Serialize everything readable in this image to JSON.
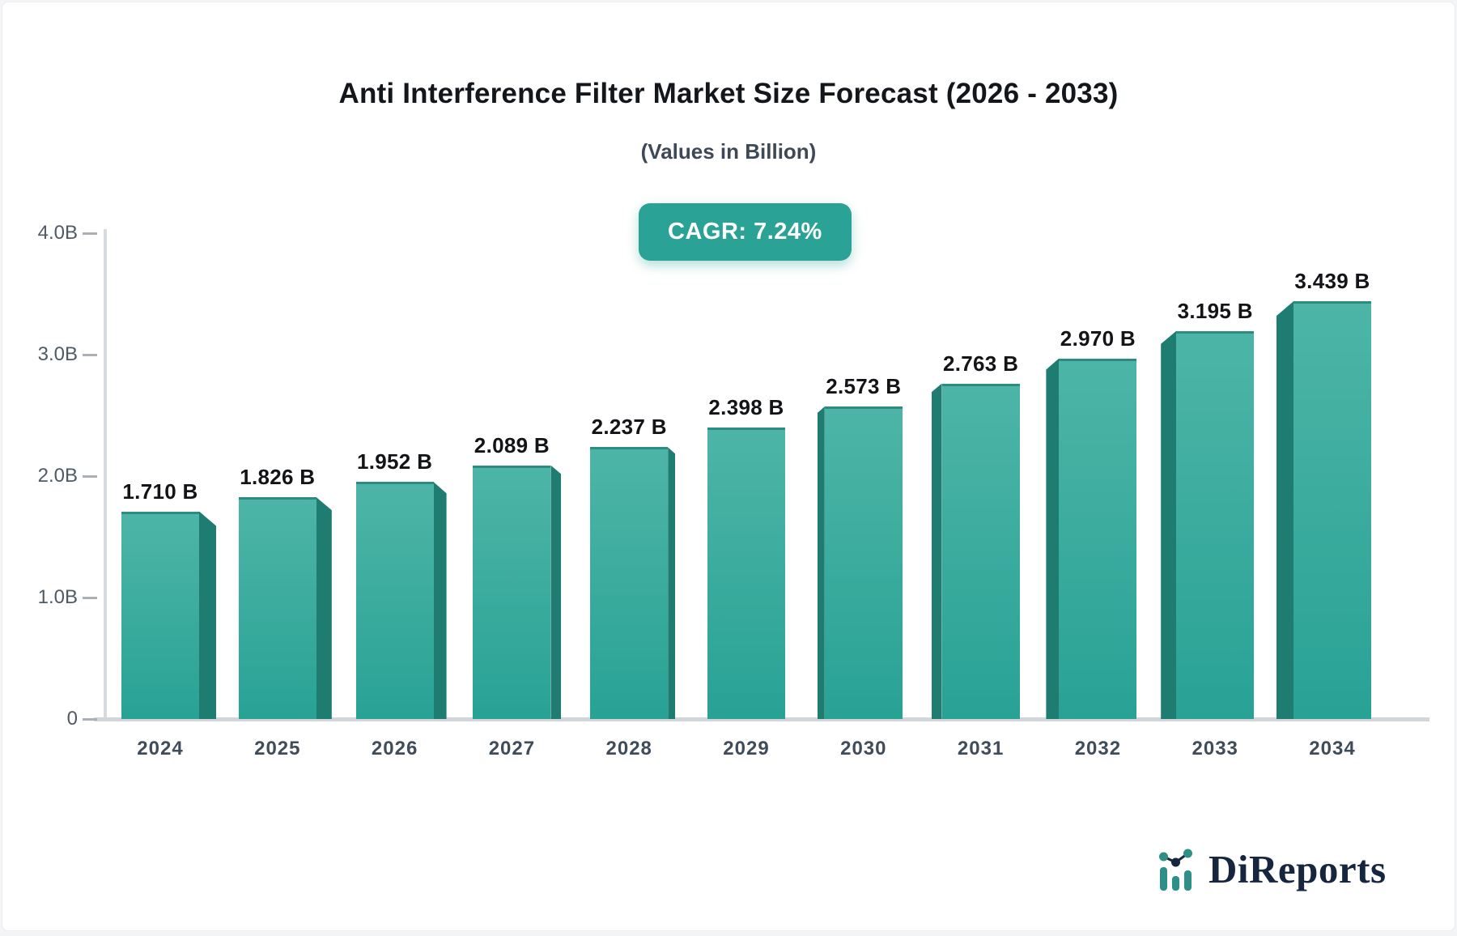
{
  "title": "Anti Interference Filter Market Size Forecast (2026 - 2033)",
  "subtitle": "(Values in Billion)",
  "badge": {
    "label": "CAGR: 7.24%"
  },
  "watermark": {
    "brand": "DiReports"
  },
  "colors": {
    "accent": "#2aa396",
    "bar_top": "#4db5a7",
    "bar_bottom": "#28a295",
    "bar_side": "#1f7c70",
    "bar_top_edge": "#2d8c7f",
    "axis_line": "#d5d9dd",
    "tick": "#a9b0b7",
    "logo_navy": "#16263f",
    "logo_teal": "#2e8f88"
  },
  "chart_data": {
    "type": "bar",
    "title": "Anti Interference Filter Market Size Forecast (2026 - 2033)",
    "subtitle": "(Values in Billion)",
    "xlabel": "",
    "ylabel": "",
    "unit": "Billion",
    "ylim": [
      0,
      4
    ],
    "grid": false,
    "legend": "none",
    "categories": [
      "2024",
      "2025",
      "2026",
      "2027",
      "2028",
      "2029",
      "2030",
      "2031",
      "2032",
      "2033",
      "2034"
    ],
    "values": [
      1.71,
      1.826,
      1.952,
      2.089,
      2.237,
      2.398,
      2.573,
      2.763,
      2.97,
      3.195,
      3.439
    ],
    "value_labels": [
      "1.710 B",
      "1.826 B",
      "1.952 B",
      "2.089 B",
      "2.237 B",
      "2.398 B",
      "2.573 B",
      "2.763 B",
      "2.970 B",
      "3.195 B",
      "3.439 B"
    ],
    "yticks": [
      {
        "v": 4,
        "label": "4.0B"
      },
      {
        "v": 3,
        "label": "3.0B"
      },
      {
        "v": 2,
        "label": "2.0B"
      },
      {
        "v": 1,
        "label": "1.0B"
      },
      {
        "v": 0,
        "label": "0"
      }
    ],
    "cagr": "CAGR: 7.24%"
  }
}
